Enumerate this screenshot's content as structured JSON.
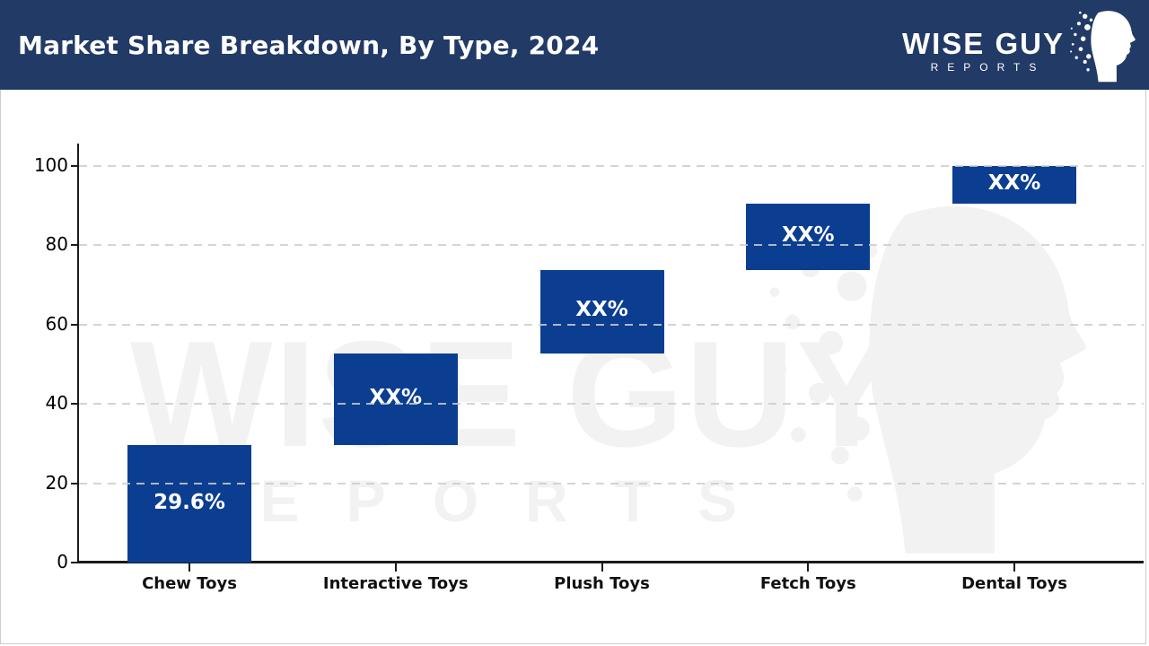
{
  "header": {
    "title": "Market Share Breakdown, By Type, 2024",
    "bg_color": "#213a66",
    "logo": {
      "line1": "WISE GUY",
      "line2": "REPORTS"
    }
  },
  "watermark": {
    "line1": "WISE GUY",
    "line2": "REPORTS"
  },
  "chart_data": {
    "type": "bar",
    "subtype": "waterfall",
    "title": "Market Share Breakdown, By Type, 2024",
    "xlabel": "",
    "ylabel": "",
    "categories": [
      "Chew Toys",
      "Interactive Toys",
      "Plush Toys",
      "Fetch Toys",
      "Dental Toys"
    ],
    "segments": [
      {
        "category": "Chew Toys",
        "start": 0,
        "end": 29.6,
        "label": "29.6%"
      },
      {
        "category": "Interactive Toys",
        "start": 29.6,
        "end": 52.8,
        "label": "XX%"
      },
      {
        "category": "Plush Toys",
        "start": 52.8,
        "end": 73.7,
        "label": "XX%"
      },
      {
        "category": "Fetch Toys",
        "start": 73.7,
        "end": 90.6,
        "label": "XX%"
      },
      {
        "category": "Dental Toys",
        "start": 90.6,
        "end": 100.0,
        "label": "XX%"
      }
    ],
    "yticks": [
      0,
      20,
      40,
      60,
      80,
      100
    ],
    "ylim": [
      0,
      105
    ],
    "grid": "horizontal-dashed-over-bars",
    "legend": "none",
    "bar_color": "#0b3e91",
    "axis_color": "#1a1a1a",
    "grid_color": "#cccccc",
    "label_color_on_bar": "#ffffff"
  }
}
